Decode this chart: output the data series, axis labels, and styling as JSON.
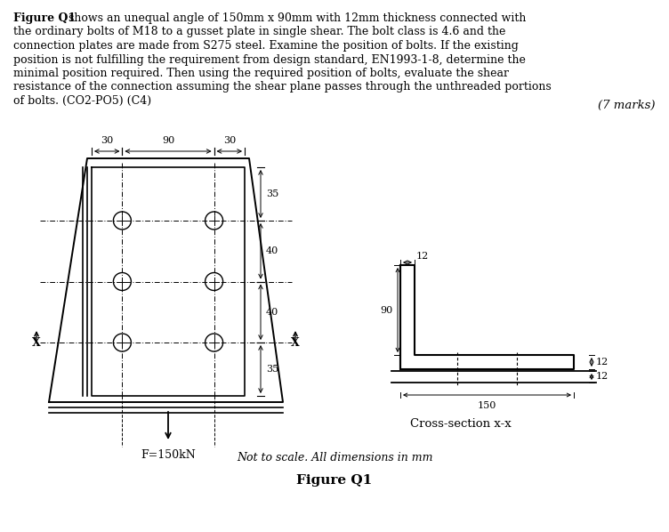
{
  "title_text": "Figure Q1",
  "marks_text": "(7 marks)",
  "note_text": "Not to scale. All dimensions in mm",
  "bg_color": "#ffffff",
  "line_color": "#000000",
  "bold_part": "Figure Q1",
  "para_line1": " shows an unequal angle of 150mm x 90mm with 12mm thickness connected with",
  "para_line2": "the ordinary bolts of M18 to a gusset plate in single shear. The bolt class is 4.6 and the",
  "para_line3": "connection plates are made from S275 steel. Examine the position of bolts. If the existing",
  "para_line4": "position is not fulfilling the requirement from design standard, EN1993-1-8, determine the",
  "para_line5": "minimal position required. Then using the required position of bolts, evaluate the shear",
  "para_line6": "resistance of the connection assuming the shear plane passes through the unthreaded portions",
  "para_line7": "of bolts. (CO2-PO5) (C4)",
  "left_force": "F=150kN",
  "left_x": "X",
  "right_label": "Cross-section x-x",
  "dim_30a": "30",
  "dim_90": "90",
  "dim_30b": "30",
  "dim_35a": "35",
  "dim_40a": "40",
  "dim_40b": "40",
  "dim_35b": "35",
  "dim_12top": "12",
  "dim_90r": "90",
  "dim_150": "150",
  "dim_12r1": "12",
  "dim_12r2": "12"
}
